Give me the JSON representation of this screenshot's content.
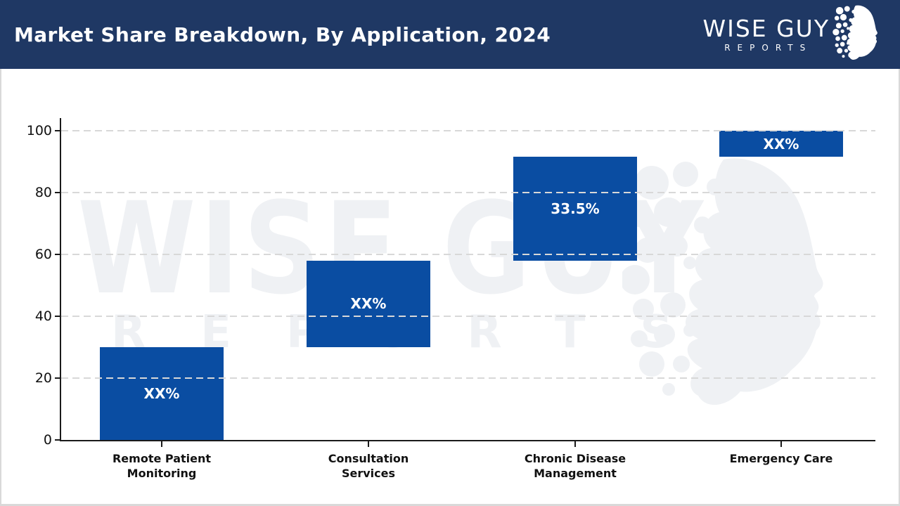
{
  "header": {
    "title": "Market Share Breakdown, By Application, 2024",
    "logo": {
      "wordmark": "WISE GUY",
      "sub": "REPORTS"
    }
  },
  "watermark": {
    "wordmark": "WISE GUY",
    "sub": "REPORTS"
  },
  "colors": {
    "header_bg": "#1f3864",
    "bar_blue": "#0a4da2",
    "grid_color": "#d8d8d8",
    "axis_color": "#1a1a1a",
    "watermark_gray": "#eff1f4",
    "bar_label": "#ffffff",
    "title_text": "#ffffff"
  },
  "chart_data": {
    "type": "bar",
    "subtype": "waterfall",
    "title": "Market Share Breakdown, By Application, 2024",
    "categories": [
      "Remote Patient Monitoring",
      "Consultation Services",
      "Chronic Disease Management",
      "Emergency Care"
    ],
    "category_label_lines": [
      [
        "Remote Patient",
        "Monitoring"
      ],
      [
        "Consultation",
        "Services"
      ],
      [
        "Chronic Disease",
        "Management"
      ],
      [
        "Emergency Care"
      ]
    ],
    "segments": [
      {
        "category": "Remote Patient Monitoring",
        "start": 0,
        "end": 30,
        "value_label": "XX%"
      },
      {
        "category": "Consultation Services",
        "start": 30,
        "end": 58,
        "value_label": "XX%"
      },
      {
        "category": "Chronic Disease Management",
        "start": 58,
        "end": 91.5,
        "value_label": "33.5%"
      },
      {
        "category": "Emergency Care",
        "start": 91.5,
        "end": 100,
        "value_label": "XX%"
      }
    ],
    "ylim": [
      0,
      100
    ],
    "yticks": [
      0,
      20,
      40,
      60,
      80,
      100
    ],
    "xlabel": "",
    "ylabel": "",
    "grid": "horizontal-dashed",
    "grid_above_bars": true,
    "legend": "none"
  }
}
